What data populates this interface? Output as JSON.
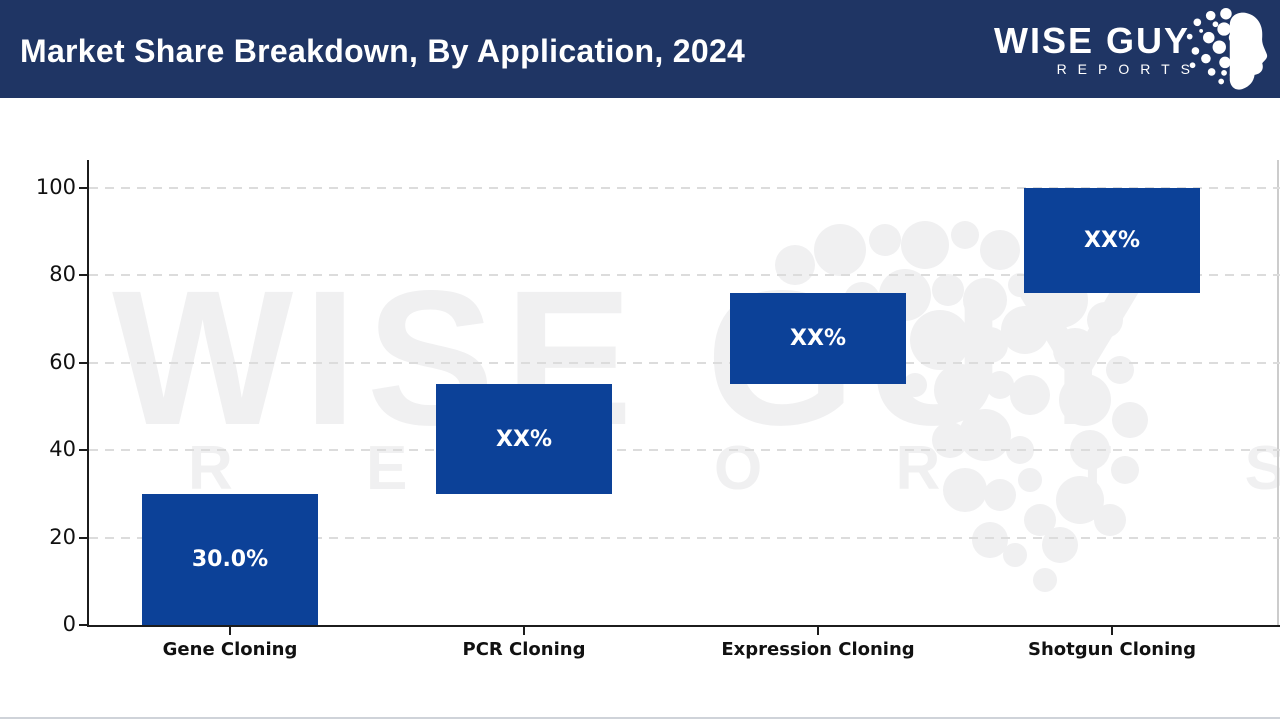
{
  "header": {
    "title": "Market Share Breakdown, By Application, 2024",
    "bg_color": "#1f3564",
    "logo": {
      "line1": "WISE GUY",
      "line2": "REPORTS"
    }
  },
  "watermark": {
    "line1": "WISE GUY",
    "line2": "R E P O R T S"
  },
  "chart_data": {
    "type": "bar",
    "subtype": "waterfall",
    "title": "Market Share Breakdown, By Application, 2024",
    "categories": [
      "Gene Cloning",
      "PCR Cloning",
      "Expression Cloning",
      "Shotgun Cloning"
    ],
    "segments": [
      {
        "category": "Gene Cloning",
        "start": 0,
        "end": 30,
        "value": 30,
        "label": "30.0%"
      },
      {
        "category": "PCR Cloning",
        "start": 30,
        "end": 55,
        "value": 25,
        "label": "XX%"
      },
      {
        "category": "Expression Cloning",
        "start": 55,
        "end": 76,
        "value": 21,
        "label": "XX%"
      },
      {
        "category": "Shotgun Cloning",
        "start": 76,
        "end": 100,
        "value": 24,
        "label": "XX%"
      }
    ],
    "y_ticks": [
      0,
      20,
      40,
      60,
      80,
      100
    ],
    "ylim": [
      0,
      106
    ],
    "xlabel": "",
    "ylabel": "",
    "grid": "horizontal dashed",
    "legend": "none",
    "bar_color": "#0c4198",
    "grid_color": "#dcdcdc",
    "axis_color": "#1c1c1c",
    "label_color_on_bar": "#ffffff"
  }
}
